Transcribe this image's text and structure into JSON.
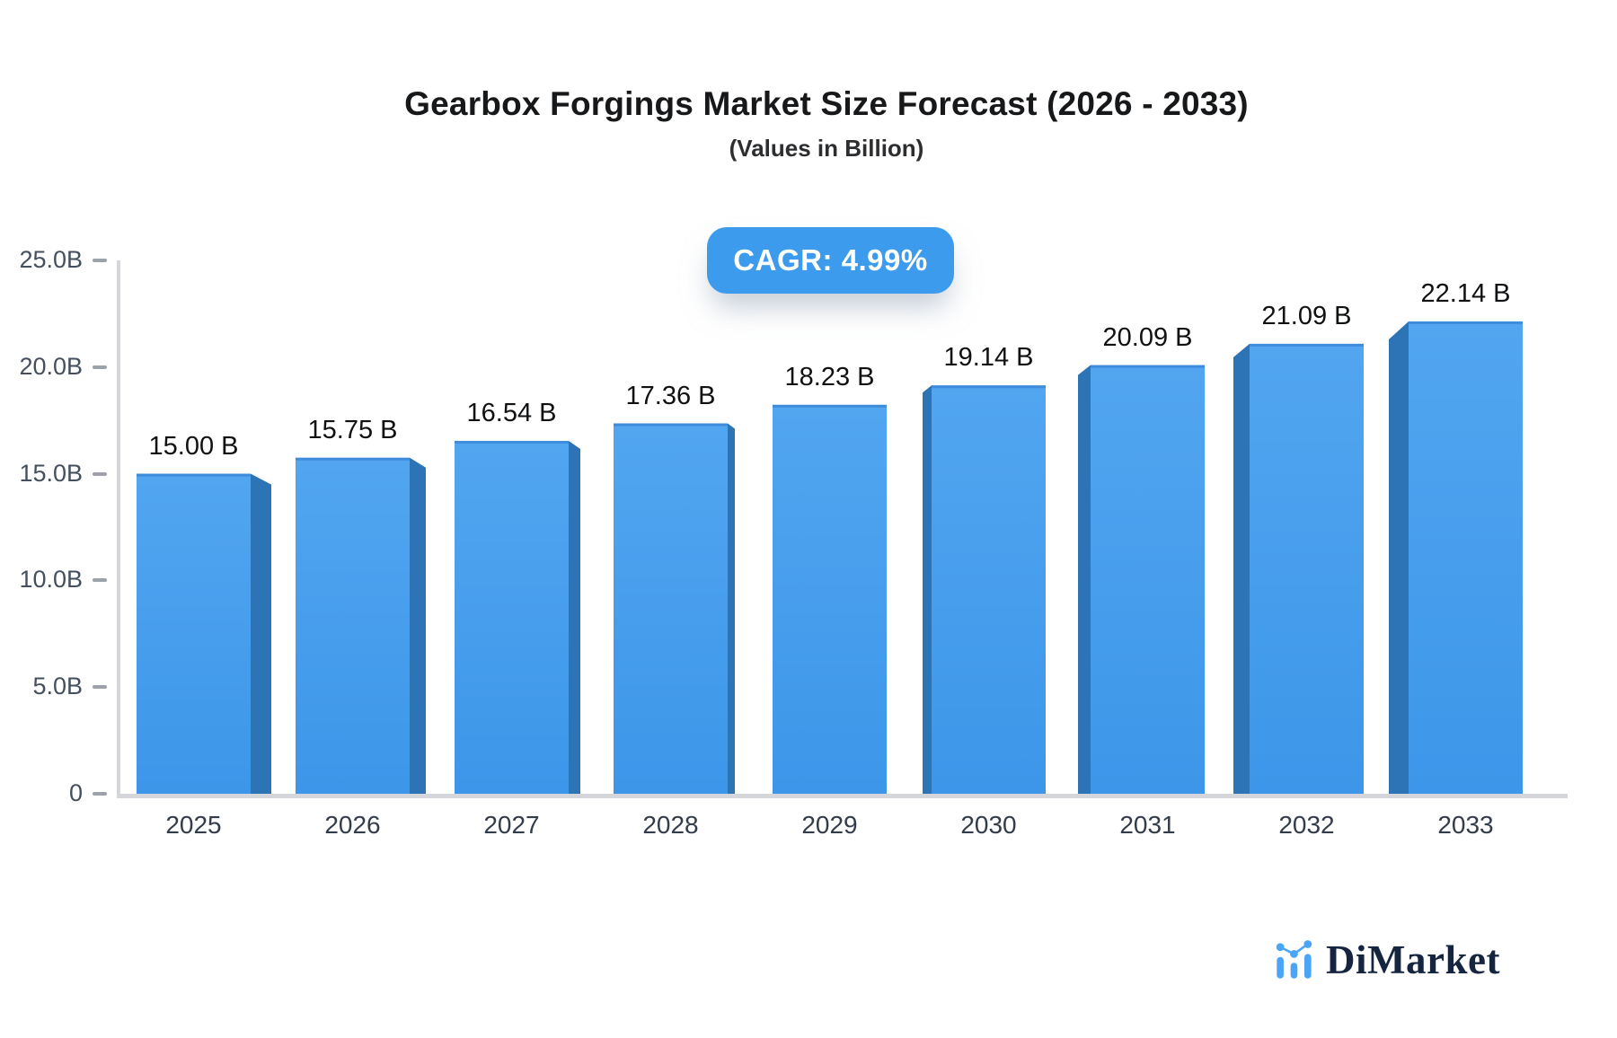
{
  "title": "Gearbox Forgings Market Size Forecast (2026 - 2033)",
  "subtitle": "(Values in Billion)",
  "badge": {
    "label": "CAGR: 4.99%",
    "color": "#3d9bee"
  },
  "chart_data": {
    "type": "bar",
    "title": "Gearbox Forgings Market Size Forecast (2026 - 2033)",
    "subtitle": "(Values in Billion)",
    "cagr_percent": 4.99,
    "categories": [
      "2025",
      "2026",
      "2027",
      "2028",
      "2029",
      "2030",
      "2031",
      "2032",
      "2033"
    ],
    "values": [
      15.0,
      15.75,
      16.54,
      17.36,
      18.23,
      19.14,
      20.09,
      21.09,
      22.14
    ],
    "value_labels": [
      "15.00 B",
      "15.75 B",
      "16.54 B",
      "17.36 B",
      "18.23 B",
      "19.14 B",
      "20.09 B",
      "21.09 B",
      "22.14 B"
    ],
    "unit": "Billion",
    "ylim": [
      0,
      25
    ],
    "yticks": [
      {
        "label": "25.0B",
        "value": 25
      },
      {
        "label": "20.0B",
        "value": 20
      },
      {
        "label": "15.0B",
        "value": 15
      },
      {
        "label": "10.0B",
        "value": 10
      },
      {
        "label": "5.0B",
        "value": 5
      },
      {
        "label": "0",
        "value": 0
      }
    ],
    "grid": false,
    "legend": "none",
    "bar_style": "3d-perspective",
    "colors": {
      "bar_top": "#52a6f0",
      "bar_bottom": "#3d96e9",
      "bar_edge": "#3f8bdc",
      "bar_side": "#2c74b5",
      "axis_line": "#d5d6dd",
      "tick_dash": "#9ca1aa",
      "ytick_label": "#454f5d",
      "xtick_label": "#323c4a",
      "value_label": "#101113"
    }
  },
  "branding": {
    "logo_text": "DiMarket",
    "logo_color": "#16253f",
    "icon_color": "#4ba5f7"
  }
}
